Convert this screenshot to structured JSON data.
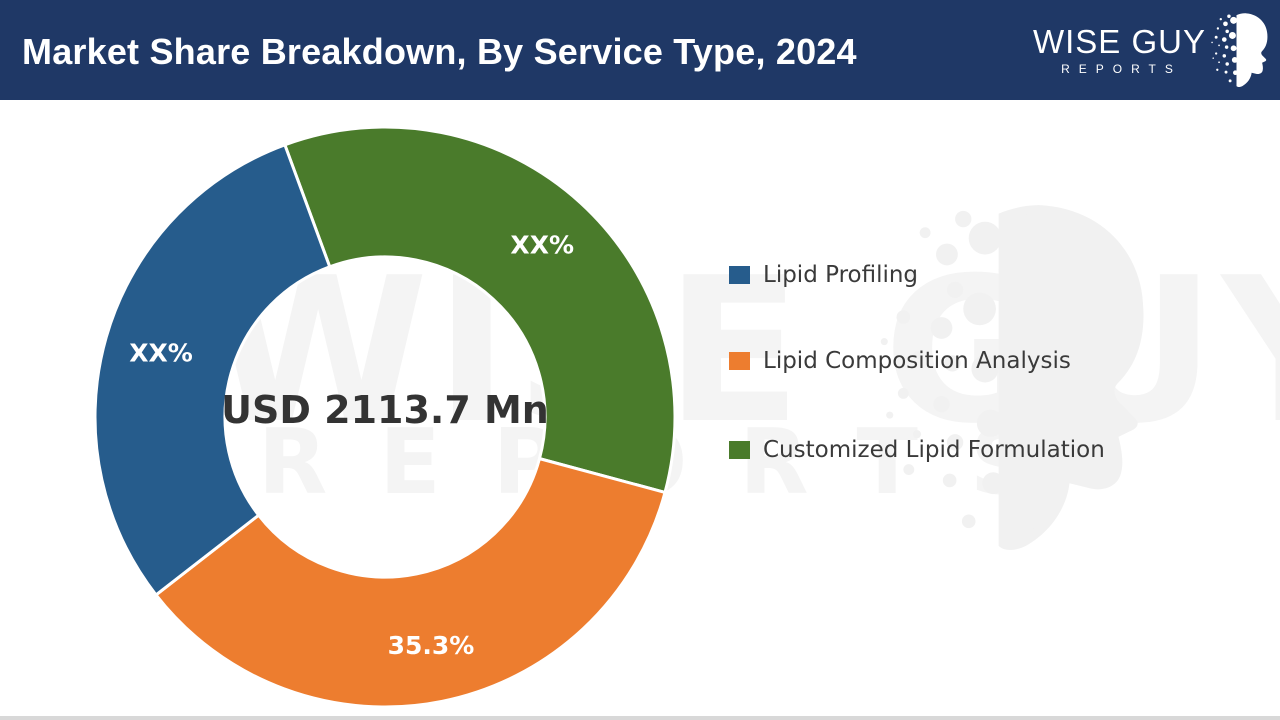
{
  "header": {
    "title": "Market Share Breakdown, By Service Type, 2024",
    "bg_color": "#1F3866",
    "logo": {
      "wordmark": "WISE GUY",
      "subtext": "REPORTS"
    }
  },
  "watermark": {
    "wordmark": "WISE GUY",
    "subtext": "REPORTS"
  },
  "chart_data": {
    "type": "pie",
    "variant": "donut",
    "title": "Market Share Breakdown, By Service Type, 2024",
    "center_label": "USD 2113.7 Mn",
    "start_angle_deg": -20.2,
    "clockwise": true,
    "slices": [
      {
        "name": "Customized Lipid Formulation",
        "label": "XX%",
        "value_pct_est": 34.8,
        "color": "#4A7B2B"
      },
      {
        "name": "Lipid Composition Analysis",
        "label": "35.3%",
        "value_pct_est": 35.3,
        "color": "#ED7D2F"
      },
      {
        "name": "Lipid Profiling",
        "label": "XX%",
        "value_pct_est": 29.9,
        "color": "#265C8C"
      }
    ],
    "legend": {
      "position": "right",
      "items": [
        {
          "label": "Lipid Profiling",
          "color": "#265C8C"
        },
        {
          "label": "Lipid Composition Analysis",
          "color": "#ED7D2F"
        },
        {
          "label": "Customized Lipid Formulation",
          "color": "#4A7B2B"
        }
      ]
    }
  }
}
